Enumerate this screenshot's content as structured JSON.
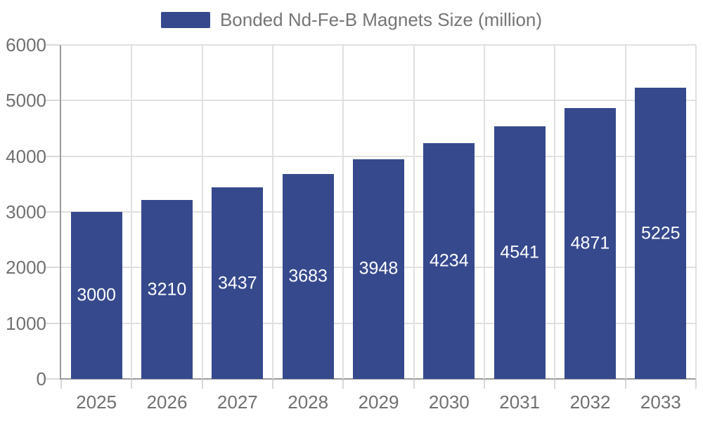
{
  "chart_data": {
    "type": "bar",
    "title": "Bonded Nd-Fe-B Magnets Size (million)",
    "legend_entries": [
      "Bonded Nd-Fe-B Magnets Size (million)"
    ],
    "legend_position": "top-center",
    "categories": [
      "2025",
      "2026",
      "2027",
      "2028",
      "2029",
      "2030",
      "2031",
      "2032",
      "2033"
    ],
    "values": [
      3000,
      3210,
      3437,
      3683,
      3948,
      4234,
      4541,
      4871,
      5225
    ],
    "xlabel": "",
    "ylabel": "",
    "ylim": [
      0,
      6000
    ],
    "yticks": [
      0,
      1000,
      2000,
      3000,
      4000,
      5000,
      6000
    ],
    "grid": true,
    "value_label_position": "inside-center"
  },
  "colors": {
    "bar": "#36498D",
    "bar_value_label": "#FFFFFF",
    "axis_line": "#9B9B9B",
    "grid_line": "#E0E0E0",
    "tick_mark": "#D9D9D9",
    "axis_text": "#707070",
    "legend_text": "#757575",
    "background": "#FFFFFF"
  }
}
